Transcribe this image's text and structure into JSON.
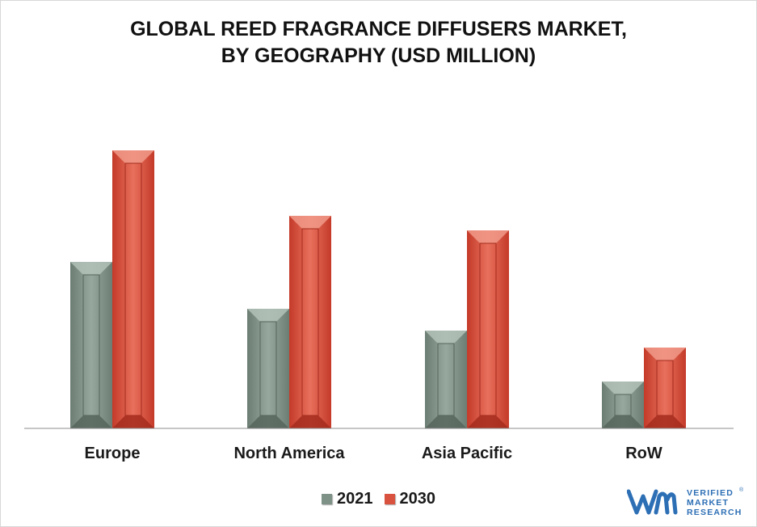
{
  "chart_data": {
    "type": "bar",
    "title_lines": [
      "GLOBAL REED FRAGRANCE DIFFUSERS MARKET,",
      "BY GEOGRAPHY (USD MILLION)"
    ],
    "categories": [
      "Europe",
      "North America",
      "Asia Pacific",
      "RoW"
    ],
    "series": [
      {
        "name": "2021",
        "color": "#7f9287",
        "values": [
          206,
          148,
          121,
          58
        ]
      },
      {
        "name": "2030",
        "color": "#d9523f",
        "values": [
          344,
          263,
          245,
          100
        ]
      }
    ],
    "ylim": [
      0,
      360
    ],
    "grid": false,
    "legend_position": "bottom-center"
  },
  "brand": {
    "logo_lines": [
      "VERIFIED",
      "MARKET",
      "RESEARCH"
    ],
    "registered": "®",
    "logo_color": "#2d6fb5",
    "icon": "vmr-logo-icon"
  }
}
